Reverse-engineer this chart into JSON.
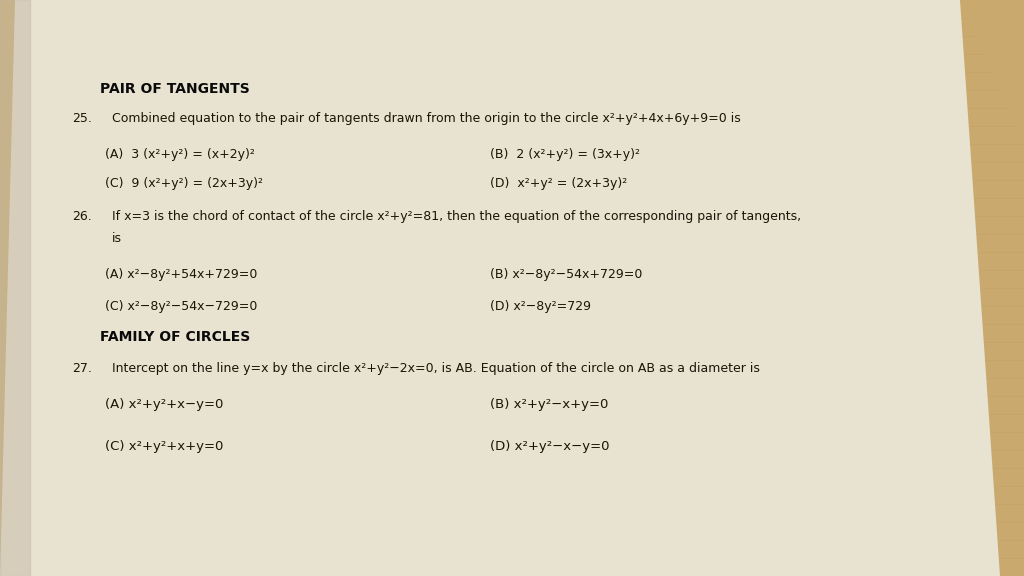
{
  "bg_wood_color": "#c8a870",
  "page_color": "#ddd8c8",
  "title": "PAIR OF TANGENTS",
  "q25_label": "25.",
  "q25_text": "Combined equation to the pair of tangents drawn from the origin to the circle x²+y²+4x+6y+9=0 is",
  "q25_A": "(A)  3 (x²+y²) = (x+2y)²",
  "q25_B": "(B)  2 (x²+y²) = (3x+y)²",
  "q25_C": "(C)  9 (x²+y²) = (2x+3y)²",
  "q25_D": "(D)  x²+y² = (2x+3y)²",
  "q26_label": "26.",
  "q26_text": "If x=3 is the chord of contact of the circle x²+y²=81, then the equation of the corresponding pair of tangents,",
  "q26_text2": "is",
  "q26_A": "(A) x²−8y²+54x+729=0",
  "q26_B": "(B) x²−8y²−54x+729=0",
  "q26_C": "(C) x²−8y²−54x−729=0",
  "q26_D": "(D) x²−8y²=729",
  "family_title": "FAMILY OF CIRCLES",
  "q27_label": "27.",
  "q27_text": "Intercept on the line y=x by the circle x²+y²−2x=0, is AB. Equation of the circle on AB as a diameter is",
  "q27_A": "(A) x²+y²+x−y=0",
  "q27_B": "(B) x²+y²−x+y=0",
  "q27_C": "(C) x²+y²+x+y=0",
  "q27_D": "(D) x²+y²−x−y=0",
  "text_color": "#1a1508",
  "bold_color": "#0a0a0a"
}
